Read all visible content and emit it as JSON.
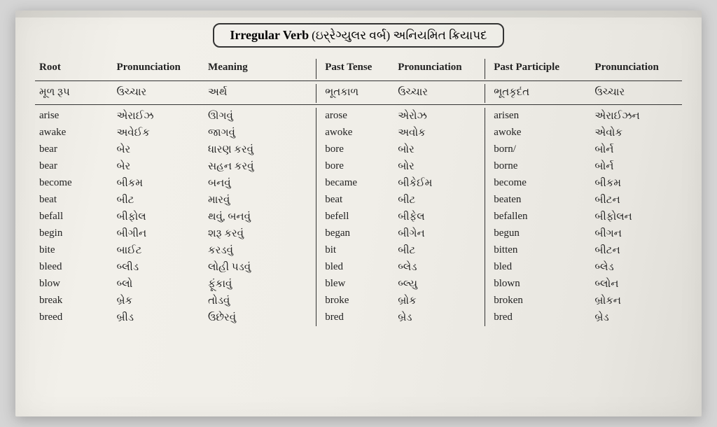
{
  "title": {
    "en": "Irregular Verb",
    "gu": "(ઇર્‌રેગ્યુલર વર્બ) અનિયમિત ક્રિયાપદ"
  },
  "headers": {
    "root": {
      "en": "Root",
      "gu": "મૂળ રૂપ"
    },
    "p1": {
      "en": "Pronun­ciation",
      "gu": "ઉચ્ચાર"
    },
    "meaning": {
      "en": "Meaning",
      "gu": "અર્થ"
    },
    "past": {
      "en": "Past Tense",
      "gu": "ભૂતકાળ"
    },
    "p2": {
      "en": "Pronun­ciation",
      "gu": "ઉચ્ચાર"
    },
    "pp": {
      "en": "Past Participle",
      "gu": "ભૂતકૃદંત"
    },
    "p3": {
      "en": "Pronun­ciation",
      "gu": "ઉચ્ચાર"
    }
  },
  "rows": [
    {
      "root": "arise",
      "p1": "એરાઈઝ",
      "mean": "ઊગવું",
      "past": "arose",
      "p2": "એરોઝ",
      "pp": "arisen",
      "p3": "એરાઈઝન"
    },
    {
      "root": "awake",
      "p1": "અવેઈક",
      "mean": "જાગવું",
      "past": "awoke",
      "p2": "અવોક",
      "pp": "awoke",
      "p3": "એવોક"
    },
    {
      "root": "bear",
      "p1": "બેર",
      "mean": "ધારણ કરવું",
      "past": "bore",
      "p2": "બોર",
      "pp": "born/",
      "p3": "બોર્ન"
    },
    {
      "root": "bear",
      "p1": "બેર",
      "mean": "સહન કરવું",
      "past": "bore",
      "p2": "બોર",
      "pp": "borne",
      "p3": "બોર્ન"
    },
    {
      "root": "become",
      "p1": "બીકમ",
      "mean": "બનવું",
      "past": "became",
      "p2": "બીકેઈમ",
      "pp": "become",
      "p3": "બીકમ"
    },
    {
      "root": "beat",
      "p1": "બીટ",
      "mean": "મારવું",
      "past": "beat",
      "p2": "બીટ",
      "pp": "beaten",
      "p3": "બીટન"
    },
    {
      "root": "befall",
      "p1": "બીફોલ",
      "mean": "થવું, બનવું",
      "past": "befell",
      "p2": "બીફેલ",
      "pp": "befallen",
      "p3": "બીફોલન"
    },
    {
      "root": "begin",
      "p1": "બીગીન",
      "mean": "શરૂ કરવું",
      "past": "began",
      "p2": "બીગેન",
      "pp": "begun",
      "p3": "બીગન"
    },
    {
      "root": "bite",
      "p1": "બાઈટ",
      "mean": "કરડવું",
      "past": "bit",
      "p2": "બીટ",
      "pp": "bitten",
      "p3": "બીટન"
    },
    {
      "root": "bleed",
      "p1": "બ્લીડ",
      "mean": "લોહી પડવું",
      "past": "bled",
      "p2": "બ્લેડ",
      "pp": "bled",
      "p3": "બ્લેડ"
    },
    {
      "root": "blow",
      "p1": "બ્લો",
      "mean": "ફૂંકાવું",
      "past": "blew",
      "p2": "બ્લ્યુ",
      "pp": "blown",
      "p3": "બ્લોન"
    },
    {
      "root": "break",
      "p1": "બ્રેક",
      "mean": "તોડવું",
      "past": "broke",
      "p2": "બ્રોક",
      "pp": "broken",
      "p3": "બ્રોકન"
    },
    {
      "root": "breed",
      "p1": "બ્રીડ",
      "mean": "ઉછેરવું",
      "past": "bred",
      "p2": "બ્રેડ",
      "pp": "bred",
      "p3": "બ્રેડ"
    }
  ]
}
